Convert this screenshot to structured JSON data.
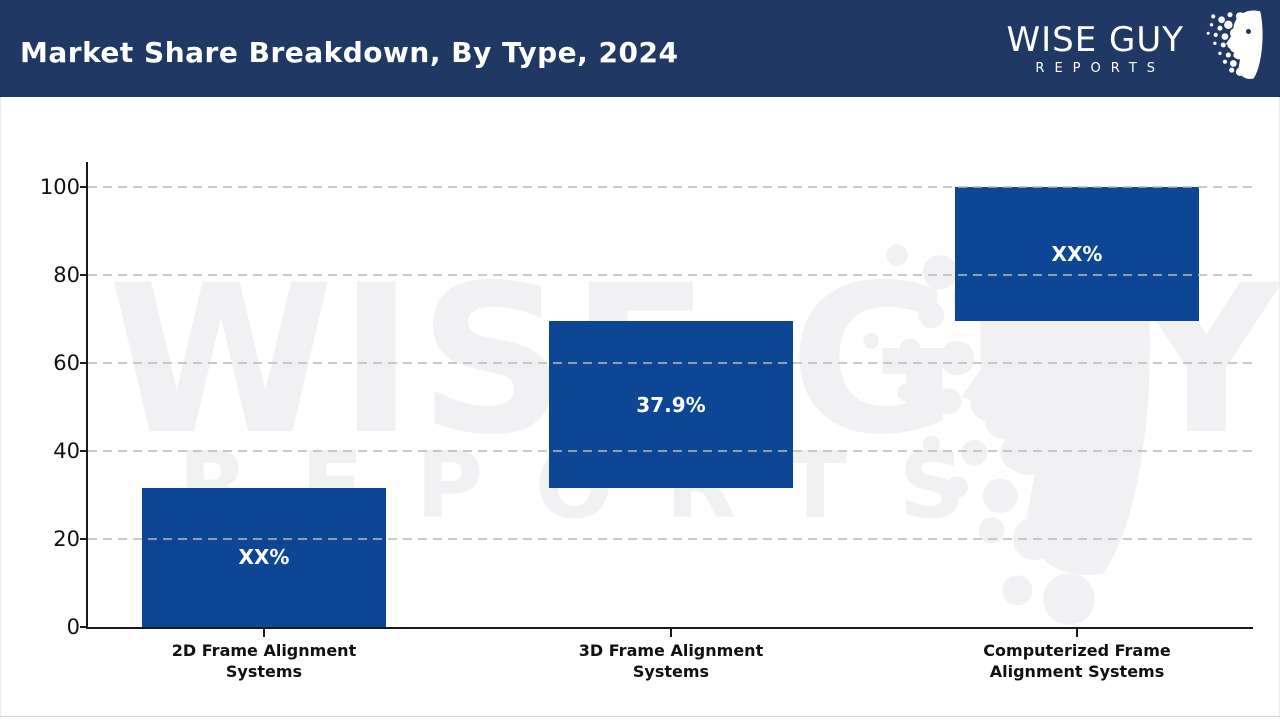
{
  "header": {
    "title": "Market Share Breakdown, By Type, 2024",
    "logo": {
      "line1": "WISE GUY",
      "line2": "REPORTS"
    }
  },
  "watermark": {
    "line1": "WISE GUY",
    "line2": "REPORTS"
  },
  "chart_data": {
    "type": "bar",
    "subtype": "floating-segment-waterfall",
    "title": "Market Share Breakdown, By Type, 2024",
    "xlabel": "",
    "ylabel": "",
    "ylim": [
      0,
      100
    ],
    "yticks": [
      0,
      20,
      40,
      60,
      80,
      100
    ],
    "grid": "horizontal dashed, drawn over bars",
    "legend": "none",
    "bar_color": "#0d4694",
    "value_label_color": "#ffffff",
    "categories": [
      "2D Frame Alignment Systems",
      "3D Frame Alignment Systems",
      "Computerized Frame Alignment Systems"
    ],
    "segments": [
      {
        "category": "2D Frame Alignment Systems",
        "label_lines": [
          "2D Frame Alignment",
          "Systems"
        ],
        "start": 0,
        "end": 31.6,
        "value_label": "XX%"
      },
      {
        "category": "3D Frame Alignment Systems",
        "label_lines": [
          "3D Frame Alignment",
          "Systems"
        ],
        "start": 31.6,
        "end": 69.5,
        "value_label": "37.9%"
      },
      {
        "category": "Computerized Frame Alignment Systems",
        "label_lines": [
          "Computerized Frame",
          "Alignment Systems"
        ],
        "start": 69.5,
        "end": 100,
        "value_label": "XX%"
      }
    ]
  },
  "colors": {
    "header_bg": "#1f3864",
    "bar_blue": "#0d4694",
    "axis": "#1a1a1a",
    "gridline": "#bdbdbd",
    "watermark": "#f1f1f4"
  }
}
